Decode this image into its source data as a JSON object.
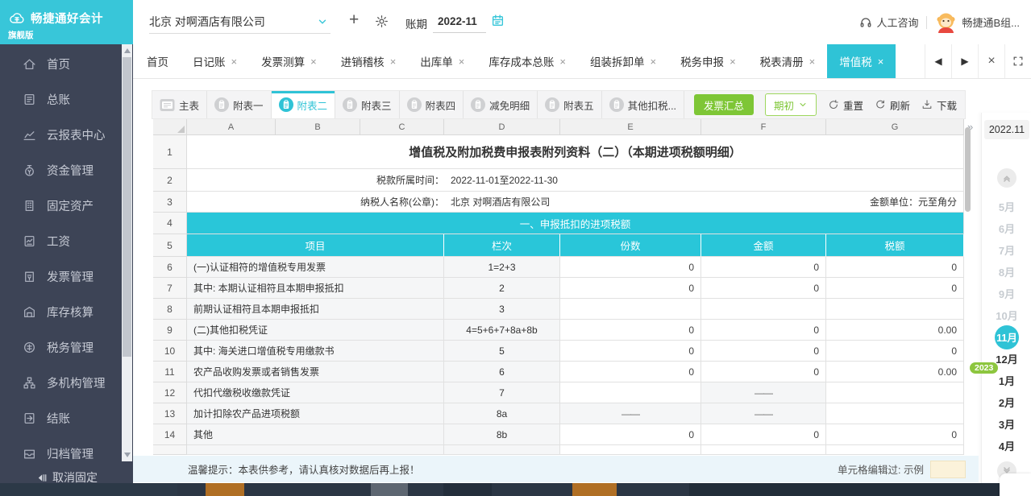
{
  "theme": {
    "brand_cyan": "#2fc3d6",
    "header_cyan": "#29c6d9",
    "green": "#7ec636",
    "badge_green": "#8dc63f",
    "sidebar_bg": "#3d4456"
  },
  "brand": {
    "name": "畅捷通好会计",
    "edition": "旗舰版"
  },
  "topbar": {
    "company": "北京 对啊酒店有限公司",
    "period_label": "账期",
    "period": "2022-11",
    "consult": "人工咨询",
    "user": "畅捷通B组..."
  },
  "sidebar": {
    "items": [
      {
        "key": "home",
        "label": "首页",
        "icon": "home-icon"
      },
      {
        "key": "general-ledger",
        "label": "总账",
        "icon": "general-ledger-icon"
      },
      {
        "key": "cloud-reports",
        "label": "云报表中心",
        "icon": "cloud-report-icon"
      },
      {
        "key": "funds",
        "label": "资金管理",
        "icon": "funds-icon"
      },
      {
        "key": "fixed-assets",
        "label": "固定资产",
        "icon": "fixed-assets-icon"
      },
      {
        "key": "payroll",
        "label": "工资",
        "icon": "payroll-icon"
      },
      {
        "key": "invoice",
        "label": "发票管理",
        "icon": "invoice-icon"
      },
      {
        "key": "inventory",
        "label": "库存核算",
        "icon": "inventory-icon"
      },
      {
        "key": "tax",
        "label": "税务管理",
        "icon": "tax-icon"
      },
      {
        "key": "multi-org",
        "label": "多机构管理",
        "icon": "multi-org-icon"
      },
      {
        "key": "closing",
        "label": "结账",
        "icon": "closing-icon"
      },
      {
        "key": "archive",
        "label": "归档管理",
        "icon": "archive-icon"
      }
    ],
    "unpin": "取消固定"
  },
  "tabs": {
    "items": [
      {
        "key": "home",
        "label": "首页",
        "closable": false
      },
      {
        "key": "journal",
        "label": "日记账",
        "closable": true
      },
      {
        "key": "invoice-calc",
        "label": "发票测算",
        "closable": true
      },
      {
        "key": "purchase-sales-audit",
        "label": "进销稽核",
        "closable": true
      },
      {
        "key": "outbound-order",
        "label": "出库单",
        "closable": true
      },
      {
        "key": "inventory-cost-ledger",
        "label": "库存成本总账",
        "closable": true
      },
      {
        "key": "assembly-order",
        "label": "组装拆卸单",
        "closable": true
      },
      {
        "key": "tax-filing",
        "label": "税务申报",
        "closable": true
      },
      {
        "key": "tax-register",
        "label": "税表清册",
        "closable": true
      },
      {
        "key": "vat",
        "label": "增值税",
        "closable": true,
        "active": true
      }
    ]
  },
  "icons": {
    "close": "×",
    "prev": "◀",
    "next": "▶",
    "expand": "»"
  },
  "formbar": {
    "tabs": [
      {
        "key": "main",
        "label": "主表"
      },
      {
        "key": "appendix-1",
        "label": "附表一"
      },
      {
        "key": "appendix-2",
        "label": "附表二",
        "active": true
      },
      {
        "key": "appendix-3",
        "label": "附表三"
      },
      {
        "key": "appendix-4",
        "label": "附表四"
      },
      {
        "key": "deduction-detail",
        "label": "减免明细"
      },
      {
        "key": "appendix-5",
        "label": "附表五"
      },
      {
        "key": "other-deduction",
        "label": "其他扣税..."
      }
    ],
    "buttons": {
      "invoice_summary": "发票汇总",
      "initial": "期初",
      "reset": "重置",
      "refresh": "刷新",
      "download": "下载"
    }
  },
  "sheet": {
    "columns": [
      "A",
      "B",
      "C",
      "D",
      "E",
      "F",
      "G"
    ],
    "row_numbers": [
      "1",
      "2",
      "3",
      "4",
      "5"
    ],
    "title": "增值税及附加税费申报表附列资料（二）（本期进项税额明细）",
    "period_label": "税款所属时间：",
    "period_value": "2022-11-01至2022-11-30",
    "taxpayer_label": "纳税人名称(公章)：",
    "taxpayer_value": "北京 对啊酒店有限公司",
    "unit": "金额单位：元至角分",
    "section": "一、申报抵扣的进项税额",
    "headers": [
      "项目",
      "栏次",
      "份数",
      "金额",
      "税额"
    ],
    "rows": [
      {
        "n": "6",
        "item": "(一)认证相符的增值税专用发票",
        "lane": "1=2+3",
        "cells": [
          "0",
          "0",
          "0"
        ]
      },
      {
        "n": "7",
        "item": "其中: 本期认证相符且本期申报抵扣",
        "lane": "2",
        "cells": [
          "0",
          "0",
          "0"
        ]
      },
      {
        "n": "8",
        "item": "前期认证相符且本期申报抵扣",
        "lane": "3",
        "cells": [
          "",
          "",
          ""
        ]
      },
      {
        "n": "9",
        "item": "(二)其他扣税凭证",
        "lane": "4=5+6+7+8a+8b",
        "cells": [
          "0",
          "0",
          "0.00"
        ]
      },
      {
        "n": "10",
        "item": "其中: 海关进口增值税专用缴款书",
        "lane": "5",
        "cells": [
          "0",
          "0",
          "0"
        ]
      },
      {
        "n": "11",
        "item": "农产品收购发票或者销售发票",
        "lane": "6",
        "cells": [
          "0",
          "0",
          "0.00"
        ]
      },
      {
        "n": "12",
        "item": "代扣代缴税收缴款凭证",
        "lane": "7",
        "cells": [
          "",
          "——",
          ""
        ]
      },
      {
        "n": "13",
        "item": "加计扣除农产品进项税额",
        "lane": "8a",
        "cells": [
          "——",
          "——",
          ""
        ]
      },
      {
        "n": "14",
        "item": "其他",
        "lane": "8b",
        "cells": [
          "0",
          "0",
          "0"
        ]
      }
    ]
  },
  "monthrail": {
    "current": "2022.11",
    "months": [
      {
        "label": "5月",
        "muted": true
      },
      {
        "label": "6月",
        "muted": true
      },
      {
        "label": "7月",
        "muted": true
      },
      {
        "label": "8月",
        "muted": true
      },
      {
        "label": "9月",
        "muted": true
      },
      {
        "label": "10月",
        "muted": true
      },
      {
        "label": "11月",
        "active": true
      },
      {
        "label": "12月"
      },
      {
        "label": "1月",
        "year": "2023"
      },
      {
        "label": "2月"
      },
      {
        "label": "3月"
      },
      {
        "label": "4月"
      }
    ]
  },
  "footer": {
    "tip": "温馨提示：本表供参考，请认真核对数据后再上报！",
    "edited_label": "单元格编辑过: 示例"
  }
}
